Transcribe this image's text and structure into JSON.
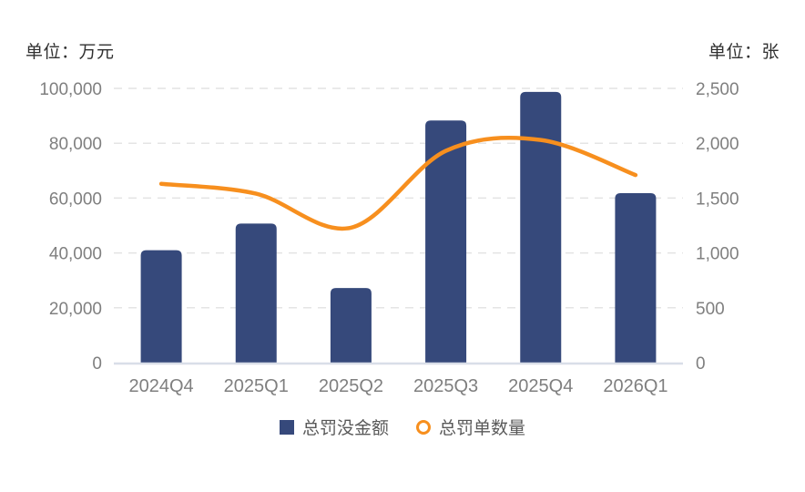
{
  "legend": {
    "items": [
      {
        "label": "总罚没金额",
        "swatch": "navy-square"
      },
      {
        "label": "总罚单数量",
        "swatch": "orange-ring"
      }
    ],
    "position": "bottom-center"
  },
  "chart_data": {
    "type": "combo",
    "subtypes": [
      "bar",
      "line"
    ],
    "categories": [
      "2024Q4",
      "2025Q1",
      "2025Q2",
      "2025Q3",
      "2025Q4",
      "2026Q1"
    ],
    "series": [
      {
        "name": "总罚没金额",
        "type": "bar",
        "axis": "left",
        "values": [
          41000,
          50700,
          27200,
          88300,
          98700,
          61800
        ]
      },
      {
        "name": "总罚单数量",
        "type": "line",
        "axis": "right",
        "values": [
          1630,
          1540,
          1230,
          1930,
          2030,
          1710
        ]
      }
    ],
    "left_axis": {
      "title": "单位：万元",
      "ticks": [
        0,
        20000,
        40000,
        60000,
        80000,
        100000
      ],
      "min": 0,
      "max": 100000
    },
    "right_axis": {
      "title": "单位：张",
      "ticks": [
        0,
        500,
        1000,
        1500,
        2000,
        2500
      ],
      "min": 0,
      "max": 2500
    },
    "colors": {
      "bar": "#36497B",
      "line": "#F78F1E",
      "tick_label": "#7F7F7F",
      "gridline": "#E4E4E4",
      "baseline": "#D9DEE8",
      "unit_label": "#303030",
      "legend_text": "#595959"
    },
    "grid": "horizontal-dashed",
    "legend_position": "bottom"
  }
}
